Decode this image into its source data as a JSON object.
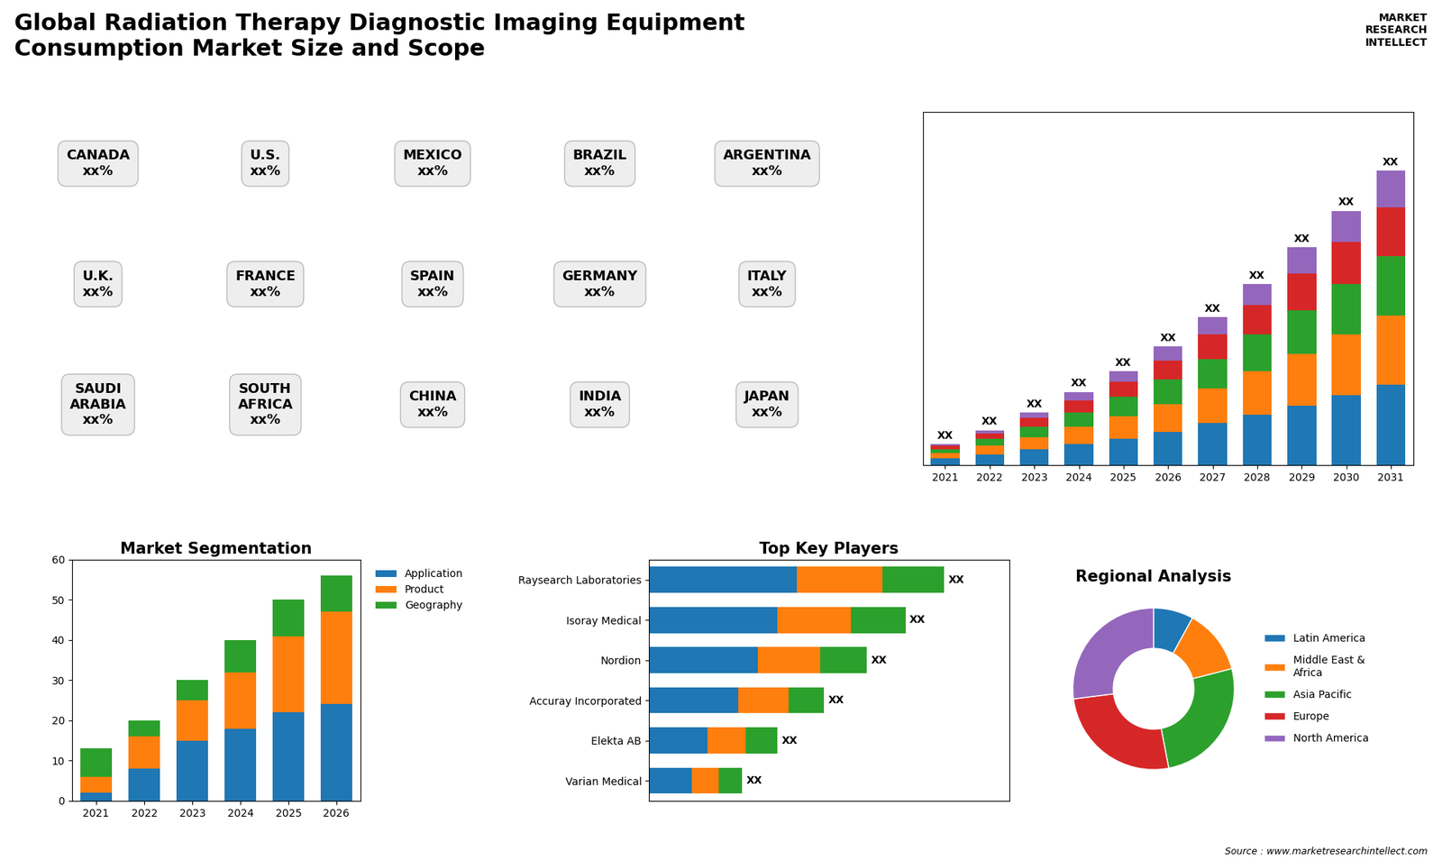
{
  "title": "Global Radiation Therapy Diagnostic Imaging Equipment\nConsumption Market Size and Scope",
  "annotations": [
    "MARKET\nRESEARCH\nINTELLECT",
    "Source : www.marketresearchintellect.com"
  ],
  "chart_data": [
    {
      "type": "map",
      "annotations": [
        "CANADA\nxx%",
        "U.S.\nxx%",
        "MEXICO\nxx%",
        "BRAZIL\nxx%",
        "ARGENTINA\nxx%",
        "U.K.\nxx%",
        "FRANCE\nxx%",
        "SPAIN\nxx%",
        "GERMANY\nxx%",
        "ITALY\nxx%",
        "SAUDI\nARABIA\nxx%",
        "SOUTH\nAFRICA\nxx%",
        "CHINA\nxx%",
        "INDIA\nxx%",
        "JAPAN\nxx%"
      ]
    },
    {
      "type": "bar",
      "stacked": true,
      "categories": [
        "2021",
        "2022",
        "2023",
        "2024",
        "2025",
        "2026",
        "2027",
        "2028",
        "2029",
        "2030",
        "2031"
      ],
      "series": [
        {
          "values": [
            2.0,
            3.0,
            4.5,
            6.0,
            7.5,
            9.5,
            12.0,
            14.5,
            17.0,
            20.0,
            23.0
          ]
        },
        {
          "values": [
            1.5,
            2.5,
            3.5,
            5.0,
            6.5,
            8.0,
            10.0,
            12.5,
            15.0,
            17.5,
            20.0
          ]
        },
        {
          "values": [
            1.0,
            2.0,
            3.0,
            4.0,
            5.5,
            7.0,
            8.5,
            10.5,
            12.5,
            14.5,
            17.0
          ]
        },
        {
          "values": [
            1.0,
            1.5,
            2.5,
            3.5,
            4.5,
            5.5,
            7.0,
            8.5,
            10.5,
            12.0,
            14.0
          ]
        },
        {
          "values": [
            0.5,
            1.0,
            1.5,
            2.5,
            3.0,
            4.0,
            5.0,
            6.0,
            7.5,
            9.0,
            10.5
          ]
        }
      ],
      "ylim": [
        0,
        101.4
      ],
      "tick_labels": "x",
      "data_labels": true,
      "value_labels": [
        "XX",
        "XX",
        "XX",
        "XX",
        "XX",
        "XX",
        "XX",
        "XX",
        "XX",
        "XX",
        "XX"
      ]
    },
    {
      "type": "bar",
      "title": "Market Segmentation",
      "stacked": true,
      "categories": [
        "2021",
        "2022",
        "2023",
        "2024",
        "2025",
        "2026"
      ],
      "series": [
        {
          "name": "Application",
          "values": [
            2,
            8,
            15,
            18,
            22,
            24
          ]
        },
        {
          "name": "Product",
          "values": [
            4,
            8,
            10,
            14,
            19,
            23
          ]
        },
        {
          "name": "Geography",
          "values": [
            7,
            4,
            5,
            8,
            9,
            9
          ]
        }
      ],
      "ylim": [
        0,
        60
      ],
      "yticks": [
        0,
        10,
        20,
        30,
        40,
        50,
        60
      ],
      "legend": "upper left"
    },
    {
      "type": "bar",
      "title": "Top Key Players",
      "orientation": "horizontal",
      "stacked": true,
      "categories": [
        "Raysearch Laboratories",
        "Isoray Medical",
        "Nordion",
        "Accuray Incorporated",
        "Elekta AB",
        "Varian Medical"
      ],
      "series": [
        {
          "values": [
            38,
            33,
            28,
            23,
            15,
            11
          ]
        },
        {
          "values": [
            22,
            19,
            16,
            13,
            10,
            7
          ]
        },
        {
          "values": [
            16,
            14,
            12,
            9,
            8,
            6
          ]
        }
      ],
      "xlim": [
        0,
        92.72
      ],
      "tick_labels": "y",
      "data_labels": true,
      "value_labels": [
        "XX",
        "XX",
        "XX",
        "XX",
        "XX",
        "XX"
      ]
    },
    {
      "type": "pie",
      "title": "Regional Analysis",
      "categories": [
        "Latin America",
        "Middle East &\nAfrica",
        "Asia Pacific",
        "Europe",
        "North America"
      ],
      "values": [
        8,
        13,
        26,
        26,
        27
      ],
      "legend": "center left"
    }
  ]
}
